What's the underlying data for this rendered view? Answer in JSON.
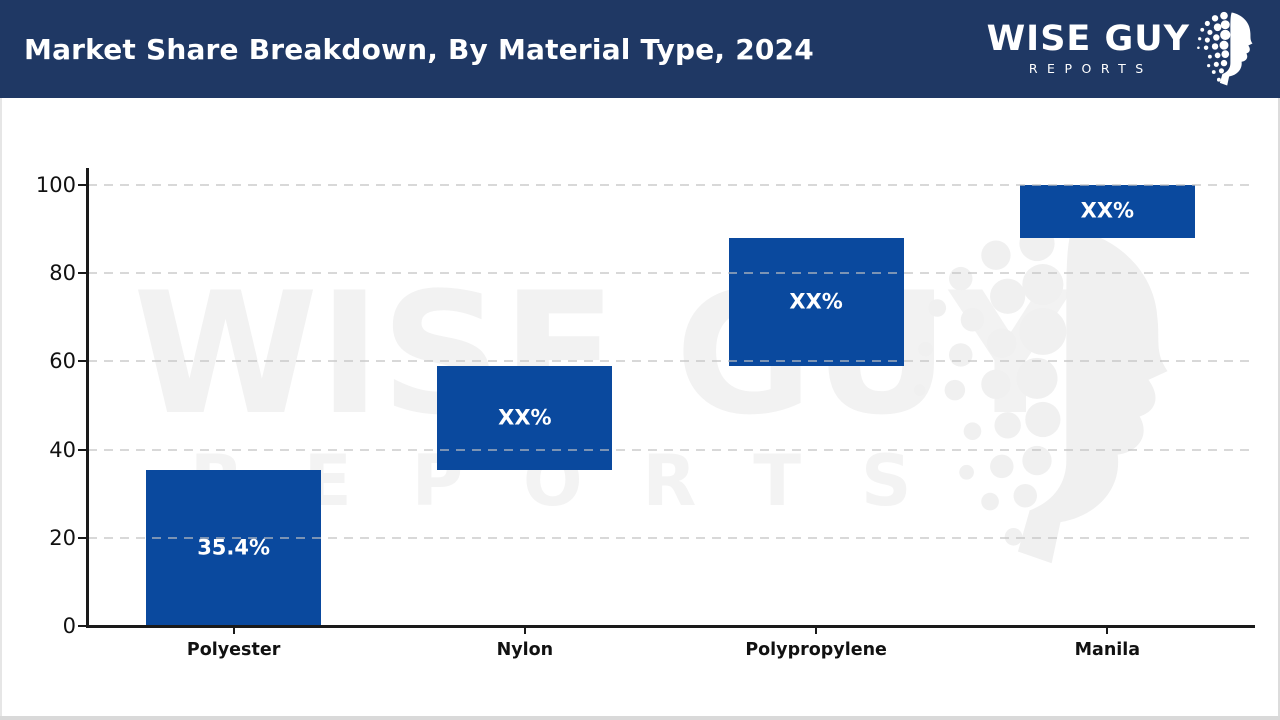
{
  "header": {
    "title": "Market Share Breakdown, By Material Type, 2024",
    "logo_line1": "WISE GUY",
    "logo_line2": "REPORTS"
  },
  "watermark": {
    "line1": "WISE GUY",
    "line2": "REPORTS"
  },
  "colors": {
    "header_bg": "#1f3864",
    "bar": "#0a499e",
    "axis": "#1a1a1a",
    "grid": "#c8c8c8",
    "bar_label": "#ffffff",
    "watermark": "#f2f2f2"
  },
  "chart_data": {
    "type": "bar",
    "variant": "waterfall",
    "title": "Market Share Breakdown, By Material Type, 2024",
    "categories": [
      "Polyester",
      "Nylon",
      "Polypropylene",
      "Manila"
    ],
    "segments": [
      {
        "category": "Polyester",
        "start": 0,
        "end": 35.4,
        "label": "35.4%"
      },
      {
        "category": "Nylon",
        "start": 35.4,
        "end": 59,
        "label": "XX%"
      },
      {
        "category": "Polypropylene",
        "start": 59,
        "end": 88,
        "label": "XX%"
      },
      {
        "category": "Manila",
        "start": 88,
        "end": 100,
        "label": "XX%"
      }
    ],
    "ylim": [
      0,
      100
    ],
    "yticks": [
      0,
      20,
      40,
      60,
      80,
      100
    ],
    "xlabel": "",
    "ylabel": "",
    "legend": false,
    "grid": {
      "horizontal": true,
      "style": "dashed"
    },
    "bar_color": "#0a499e",
    "bar_label_color": "#ffffff"
  }
}
